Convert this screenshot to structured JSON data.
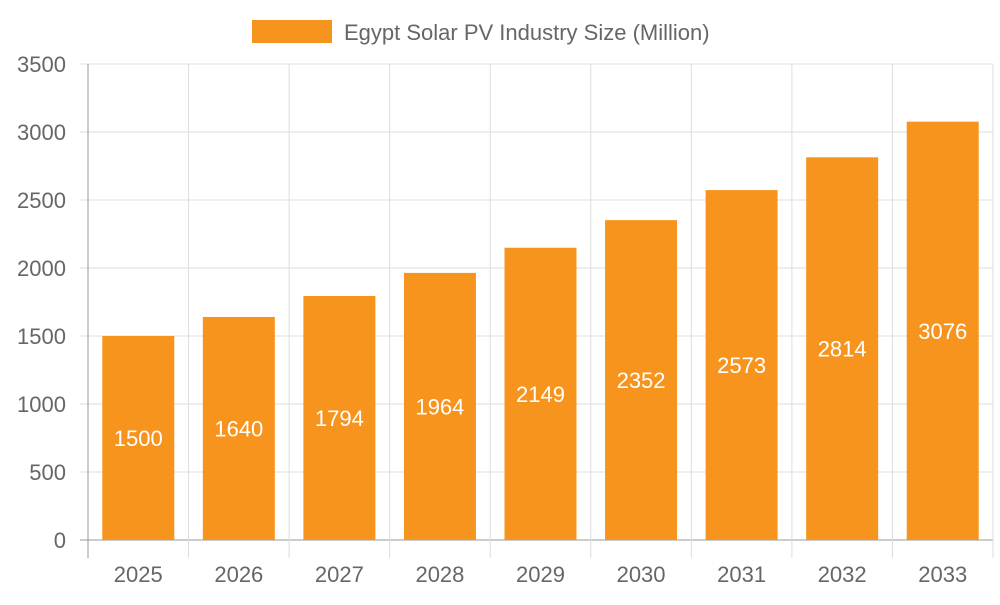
{
  "chart_data": {
    "type": "bar",
    "categories": [
      "2025",
      "2026",
      "2027",
      "2028",
      "2029",
      "2030",
      "2031",
      "2032",
      "2033"
    ],
    "series": [
      {
        "name": "Egypt Solar PV Industry Size (Million)",
        "values": [
          1500,
          1640,
          1794,
          1964,
          2149,
          2352,
          2573,
          2814,
          3076
        ],
        "color": "#F7941E"
      }
    ],
    "ylim": [
      0,
      3500
    ],
    "yticks": [
      0,
      500,
      1000,
      1500,
      2000,
      2500,
      3000,
      3500
    ],
    "grid": true,
    "legend": "top-center",
    "data_labels": true,
    "data_label_color": "#FFFFFF"
  }
}
